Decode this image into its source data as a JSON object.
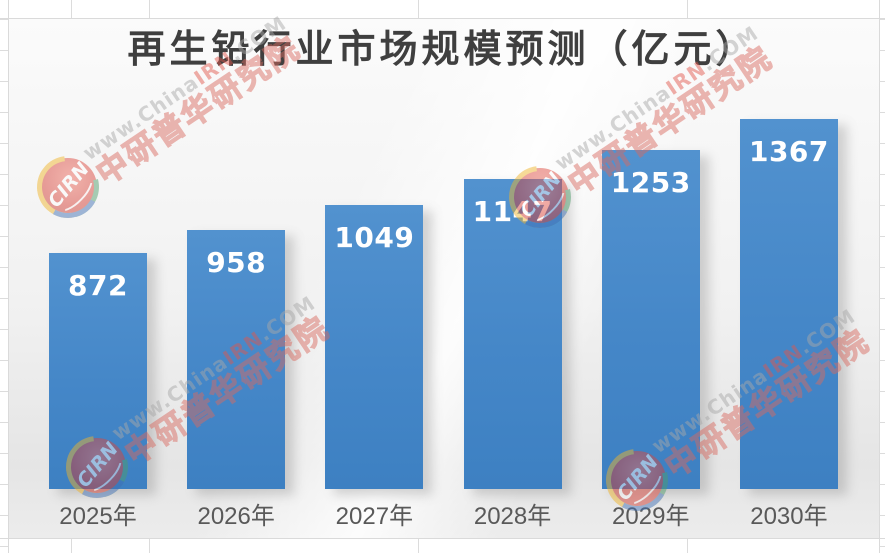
{
  "title": "再生铅行业市场规模预测（亿元）",
  "chart_data": {
    "type": "bar",
    "title": "再生铅行业市场规模预测（亿元）",
    "categories": [
      "2025年",
      "2026年",
      "2027年",
      "2028年",
      "2029年",
      "2030年"
    ],
    "values": [
      872,
      958,
      1049,
      1147,
      1253,
      1367
    ],
    "xlabel": "",
    "ylabel": "",
    "ylim": [
      0,
      1400
    ],
    "grid": false,
    "legend": false,
    "data_labels": "inside-end",
    "bar_color": "#4789c8",
    "value_label_color": "#ffffff",
    "axis_label_color": "#595959",
    "title_color": "#3f3f3f"
  },
  "watermark": {
    "logo_text": "CIRN",
    "url_prefix": "www.China",
    "url_mid": "IRN",
    "url_suffix": ".COM",
    "brand": "中研普华研究院",
    "accent_red": "#e2574c",
    "text_gray": "#a8a8a8"
  }
}
